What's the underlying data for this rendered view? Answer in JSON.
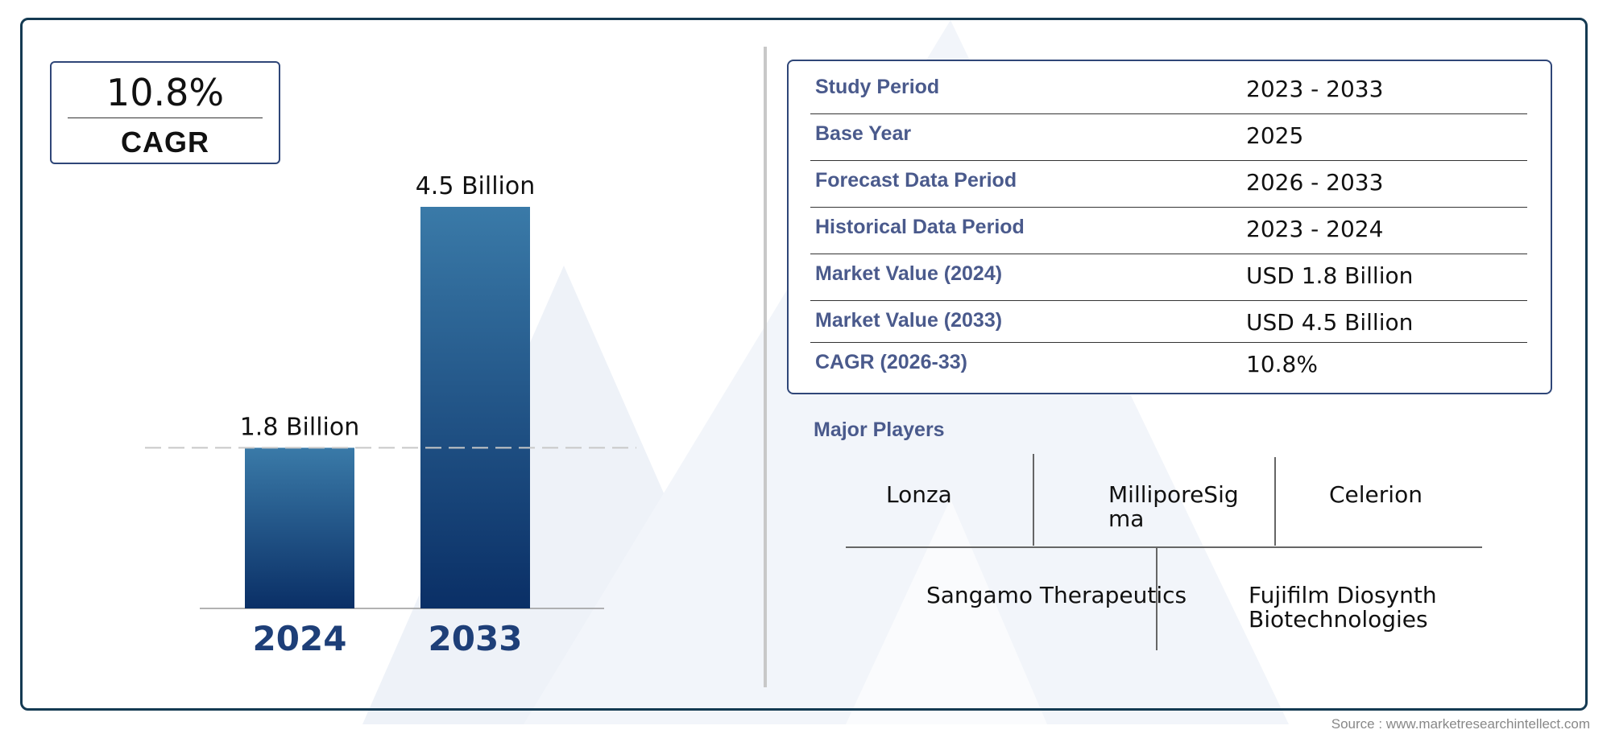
{
  "cagr": {
    "value": "10.8%",
    "label": "CAGR"
  },
  "chart_data": {
    "type": "bar",
    "categories": [
      "2024",
      "2033"
    ],
    "values": [
      1.8,
      4.5
    ],
    "data_labels": [
      "1.8 Billion",
      "4.5 Billion"
    ],
    "ylim": [
      0,
      4.5
    ],
    "grid": false,
    "title": "",
    "xlabel": "",
    "ylabel": "",
    "colors": {
      "bar_top": "#3a7aa8",
      "bar_bottom": "#0a2f66",
      "category_label": "#1e3f78",
      "reference_line": "#c8c8c8"
    }
  },
  "info": {
    "rows": [
      {
        "key": "Study Period",
        "value": "2023 - 2033"
      },
      {
        "key": "Base Year",
        "value": "2025"
      },
      {
        "key": "Forecast Data Period",
        "value": "2026 - 2033"
      },
      {
        "key": "Historical Data Period",
        "value": "2023 - 2024"
      },
      {
        "key": "Market Value (2024)",
        "value": "USD 1.8 Billion"
      },
      {
        "key": "Market Value (2033)",
        "value": "USD 4.5 Billion"
      },
      {
        "key": "CAGR (2026-33)",
        "value": "10.8%"
      }
    ]
  },
  "players": {
    "title": "Major Players",
    "row1": [
      "Lonza",
      "MilliporeSig\nma",
      "Celerion"
    ],
    "row2": [
      "Sangamo Therapeutics",
      "Fujifilm Diosynth\nBiotechnologies"
    ]
  },
  "source": "Source : www.marketresearchintellect.com"
}
